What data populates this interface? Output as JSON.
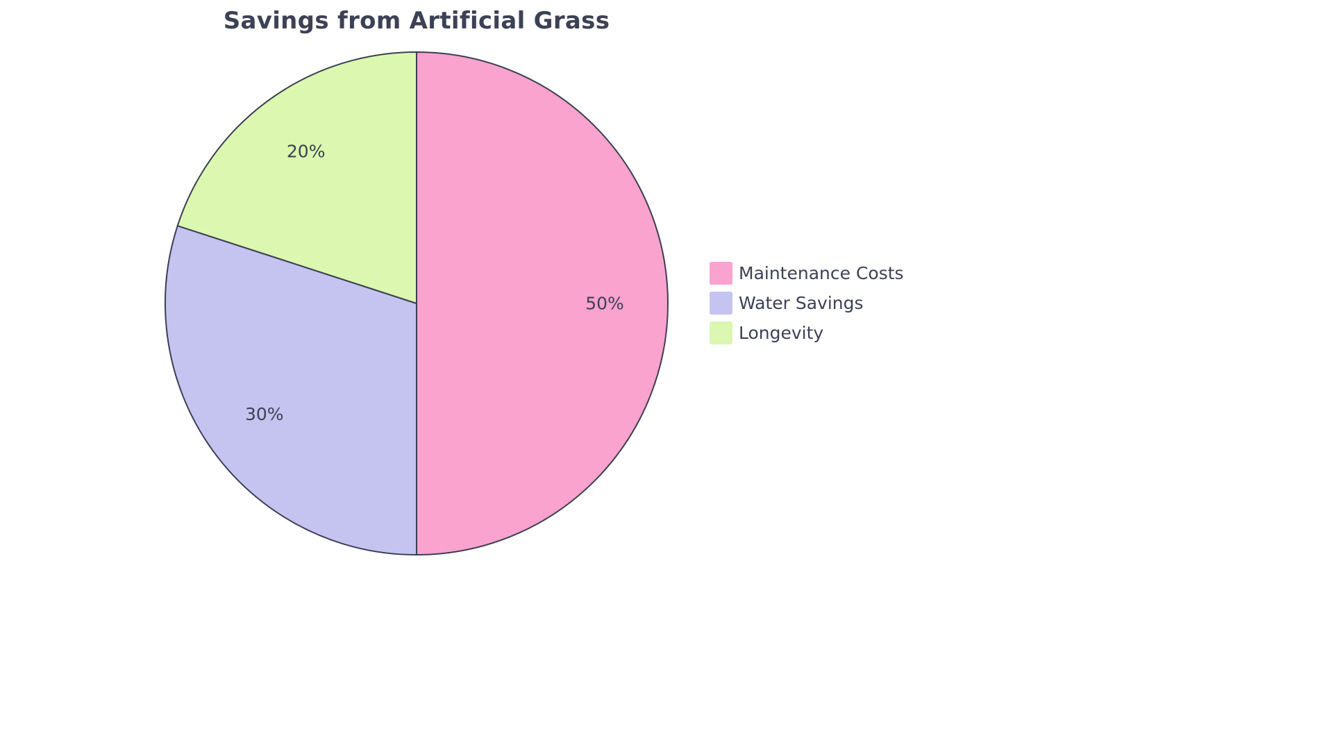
{
  "page": {
    "background": "#ffffff"
  },
  "chart_data": {
    "type": "pie",
    "title": "Savings from Artificial Grass",
    "slices": [
      {
        "label": "Maintenance Costs",
        "value": 50,
        "display": "50%",
        "color": "#F9A3CE"
      },
      {
        "label": "Water Savings",
        "value": 30,
        "display": "30%",
        "color": "#C5C3F0"
      },
      {
        "label": "Longevity",
        "value": 20,
        "display": "20%",
        "color": "#DBF7B0"
      }
    ],
    "stroke_color": "#3A3E52",
    "text_color": "#3D4155",
    "legend_position": "right",
    "start_angle_deg": 0,
    "direction": "clockwise",
    "total": 100
  }
}
